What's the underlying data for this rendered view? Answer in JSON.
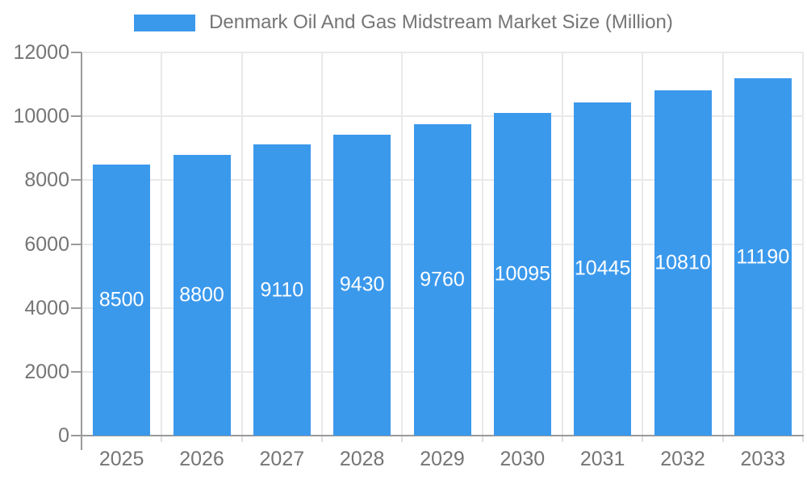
{
  "legend": {
    "label": "Denmark Oil And Gas Midstream Market Size (Million)",
    "swatch_color": "#3b99ec"
  },
  "chart_data": {
    "type": "bar",
    "title": "Denmark Oil And Gas Midstream Market Size (Million)",
    "categories": [
      "2025",
      "2026",
      "2027",
      "2028",
      "2029",
      "2030",
      "2031",
      "2032",
      "2033"
    ],
    "series": [
      {
        "name": "Denmark Oil And Gas Midstream Market Size (Million)",
        "values": [
          8500,
          8800,
          9110,
          9430,
          9760,
          10095,
          10445,
          10810,
          11190
        ]
      }
    ],
    "value_labels": [
      "8500",
      "8800",
      "9110",
      "9430",
      "9760",
      "10095",
      "10445",
      "10810",
      "11190"
    ],
    "ylim": [
      0,
      12000
    ],
    "ytick_step": 2000,
    "yticks": [
      "0",
      "2000",
      "4000",
      "6000",
      "8000",
      "10000",
      "12000"
    ],
    "xlabel": "",
    "ylabel": "",
    "grid": true,
    "legend_position": "top",
    "bar_color": "#3b99ec",
    "value_label_color": "#ffffff",
    "axis_label_color": "#757575"
  }
}
